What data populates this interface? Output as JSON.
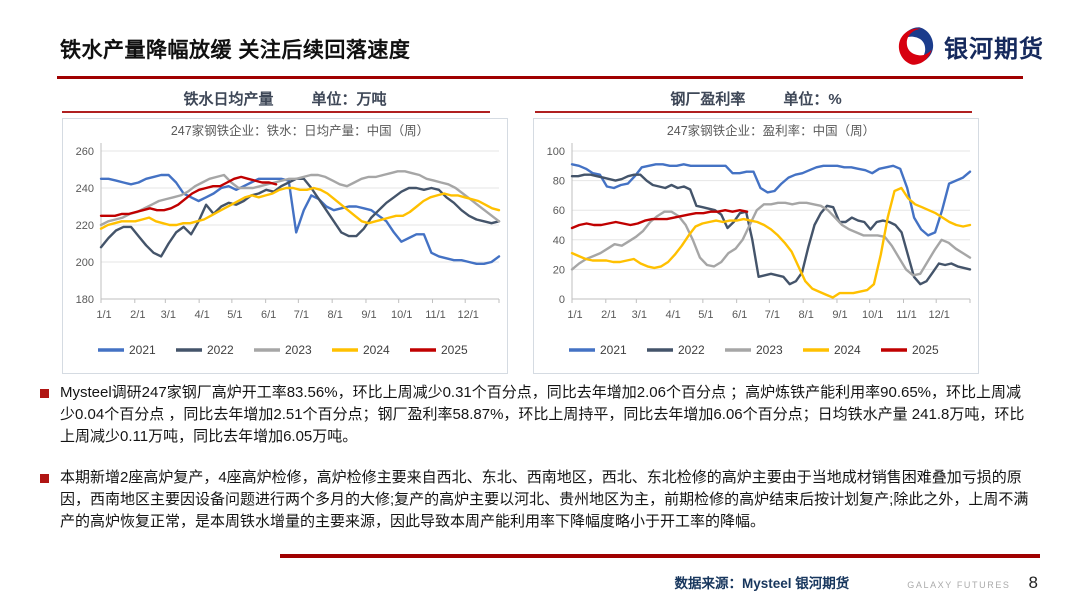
{
  "header": {
    "title": "铁水产量降幅放缓 关注后续回落速度",
    "logo_text": "银河期货"
  },
  "chart_headers": {
    "left_label": "铁水日均产量",
    "left_unit": "单位：万吨",
    "right_label": "钢厂盈利率",
    "right_unit": "单位：%"
  },
  "colors": {
    "accent_red": "#A00000",
    "underline_red": "#B02020",
    "header_text": "#3E4757",
    "logo_navy": "#15295C",
    "logo_red": "#D7000F",
    "logo_blue": "#1B3C8C"
  },
  "chart_data": [
    {
      "type": "line",
      "title": "247家钢铁企业：铁水：日均产量：中国（周）",
      "ylim": [
        180,
        260
      ],
      "yticks": [
        180,
        200,
        220,
        240,
        260
      ],
      "xticks": [
        "1/1",
        "2/1",
        "3/1",
        "4/1",
        "5/1",
        "6/1",
        "7/1",
        "8/1",
        "9/1",
        "10/1",
        "11/1",
        "12/1"
      ],
      "legend_position": "bottom",
      "grid": "horizontal",
      "series": [
        {
          "name": "2021",
          "color": "#4472C4",
          "values": [
            245,
            245,
            244,
            243,
            242,
            243,
            245,
            246,
            247,
            247,
            243,
            237,
            235,
            233,
            235,
            237,
            240,
            241,
            239,
            241,
            243,
            245,
            245,
            245,
            245,
            244,
            216,
            228,
            236,
            234,
            230,
            228,
            229,
            230,
            230,
            229,
            228,
            225,
            222,
            216,
            211,
            213,
            215,
            215,
            205,
            203,
            202,
            201,
            201,
            200,
            199,
            199,
            200,
            203
          ]
        },
        {
          "name": "2022",
          "color": "#44546A",
          "values": [
            208,
            213,
            217,
            219,
            219,
            214,
            209,
            205,
            203,
            210,
            216,
            219,
            215,
            222,
            231,
            226,
            230,
            232,
            231,
            233,
            236,
            237,
            239,
            238,
            241,
            243,
            245,
            245,
            240,
            234,
            228,
            222,
            216,
            214,
            214,
            218,
            224,
            228,
            232,
            235,
            238,
            240,
            240,
            239,
            240,
            239,
            235,
            232,
            228,
            225,
            223,
            222,
            221,
            222
          ]
        },
        {
          "name": "2023",
          "color": "#A6A6A6",
          "values": [
            220,
            222,
            223,
            224,
            226,
            227,
            229,
            231,
            233,
            234,
            235,
            236,
            238,
            241,
            243,
            245,
            246,
            247,
            243,
            240,
            240,
            240,
            241,
            242,
            243,
            244,
            245,
            245,
            246,
            247,
            247,
            246,
            244,
            242,
            241,
            243,
            245,
            246,
            246,
            247,
            248,
            249,
            249,
            248,
            247,
            245,
            244,
            243,
            242,
            240,
            237,
            234,
            231,
            228,
            225,
            222
          ]
        },
        {
          "name": "2024",
          "color": "#FFC000",
          "values": [
            218,
            220,
            221,
            222,
            222,
            222,
            223,
            224,
            222,
            221,
            220,
            220,
            221,
            221,
            222,
            223,
            225,
            227,
            229,
            231,
            233,
            235,
            236,
            235,
            236,
            237,
            239,
            240,
            240,
            239,
            239,
            240,
            239,
            237,
            234,
            231,
            228,
            225,
            222,
            221,
            222,
            223,
            224,
            225,
            225,
            227,
            230,
            233,
            235,
            236,
            237,
            236,
            236,
            235,
            234,
            233,
            231,
            229,
            228
          ]
        },
        {
          "name": "2025",
          "color": "#C00000",
          "span": 0.44,
          "values": [
            225,
            225,
            225,
            226,
            226,
            227,
            228,
            229,
            228,
            228,
            229,
            231,
            234,
            237,
            239,
            240,
            241,
            241,
            243,
            245,
            246,
            245,
            244,
            243,
            243,
            242
          ]
        }
      ]
    },
    {
      "type": "line",
      "title": "247家钢铁企业：盈利率：中国（周）",
      "ylim": [
        0,
        100
      ],
      "yticks": [
        0,
        20,
        40,
        60,
        80,
        100
      ],
      "xticks": [
        "1/1",
        "2/1",
        "3/1",
        "4/1",
        "5/1",
        "6/1",
        "7/1",
        "8/1",
        "9/1",
        "10/1",
        "11/1",
        "12/1"
      ],
      "legend_position": "bottom",
      "grid": "horizontal",
      "series": [
        {
          "name": "2021",
          "color": "#4472C4",
          "values": [
            91,
            90,
            88,
            85,
            84,
            76,
            75,
            77,
            78,
            83,
            89,
            90,
            91,
            91,
            90,
            90,
            91,
            90,
            90,
            90,
            90,
            90,
            90,
            85,
            85,
            86,
            86,
            75,
            72,
            73,
            78,
            82,
            84,
            85,
            87,
            89,
            90,
            90,
            90,
            89,
            89,
            88,
            87,
            85,
            88,
            89,
            90,
            88,
            75,
            55,
            47,
            43,
            45,
            60,
            78,
            80,
            82,
            86
          ]
        },
        {
          "name": "2022",
          "color": "#44546A",
          "values": [
            83,
            83,
            84,
            84,
            83,
            82,
            81,
            80,
            81,
            83,
            84,
            84,
            80,
            77,
            76,
            75,
            77,
            75,
            76,
            74,
            63,
            62,
            61,
            60,
            57,
            48,
            52,
            58,
            59,
            40,
            15,
            16,
            17,
            16,
            15,
            10,
            12,
            18,
            35,
            50,
            58,
            63,
            62,
            52,
            52,
            55,
            53,
            52,
            47,
            52,
            53,
            52,
            50,
            45,
            30,
            15,
            10,
            12,
            18,
            24,
            23,
            24,
            22,
            21,
            20
          ]
        },
        {
          "name": "2023",
          "color": "#A6A6A6",
          "values": [
            20,
            24,
            27,
            29,
            31,
            34,
            37,
            36,
            39,
            42,
            46,
            52,
            56,
            59,
            59,
            56,
            50,
            40,
            28,
            23,
            22,
            25,
            31,
            34,
            40,
            50,
            60,
            64,
            64,
            65,
            65,
            64,
            65,
            65,
            64,
            63,
            60,
            55,
            50,
            47,
            45,
            43,
            43,
            43,
            42,
            36,
            28,
            20,
            16,
            17,
            25,
            33,
            40,
            38,
            34,
            31,
            28
          ]
        },
        {
          "name": "2024",
          "color": "#FFC000",
          "values": [
            31,
            29,
            27,
            26,
            26,
            26,
            25,
            25,
            26,
            27,
            24,
            22,
            21,
            22,
            25,
            30,
            36,
            43,
            49,
            51,
            52,
            53,
            52,
            53,
            53,
            54,
            53,
            52,
            50,
            47,
            43,
            38,
            32,
            22,
            12,
            7,
            5,
            3,
            1,
            4,
            4,
            4,
            5,
            6,
            10,
            30,
            55,
            73,
            75,
            68,
            64,
            62,
            60,
            58,
            55,
            52,
            50,
            49,
            50
          ]
        },
        {
          "name": "2025",
          "color": "#C00000",
          "span": 0.44,
          "values": [
            48,
            50,
            51,
            50,
            50,
            51,
            52,
            51,
            50,
            51,
            53,
            54,
            54,
            54,
            55,
            56,
            57,
            58,
            58,
            59,
            59,
            60,
            59,
            60,
            59
          ]
        }
      ]
    }
  ],
  "bullets": [
    "Mysteel调研247家钢厂高炉开工率83.56%，环比上周减少0.31个百分点，同比去年增加2.06个百分点 ；高炉炼铁产能利用率90.65%，环比上周减少0.04个百分点 ，同比去年增加2.51个百分点；钢厂盈利率58.87%，环比上周持平，同比去年增加6.06个百分点；日均铁水产量 241.8万吨，环比上周减少0.11万吨，同比去年增加6.05万吨。",
    "本期新增2座高炉复产，4座高炉检修，高炉检修主要来自西北、东北、西南地区，西北、东北检修的高炉主要由于当地成材销售困难叠加亏损的原因，西南地区主要因设备问题进行两个多月的大修;复产的高炉主要以河北、贵州地区为主，前期检修的高炉结束后按计划复产;除此之外，上周不满产的高炉恢复正常，是本周铁水增量的主要来源，因此导致本周产能利用率下降幅度略小于开工率的降幅。"
  ],
  "footer": {
    "source": "数据来源：Mysteel 银河期货",
    "brand": "GALAXY FUTURES",
    "page": "8"
  }
}
